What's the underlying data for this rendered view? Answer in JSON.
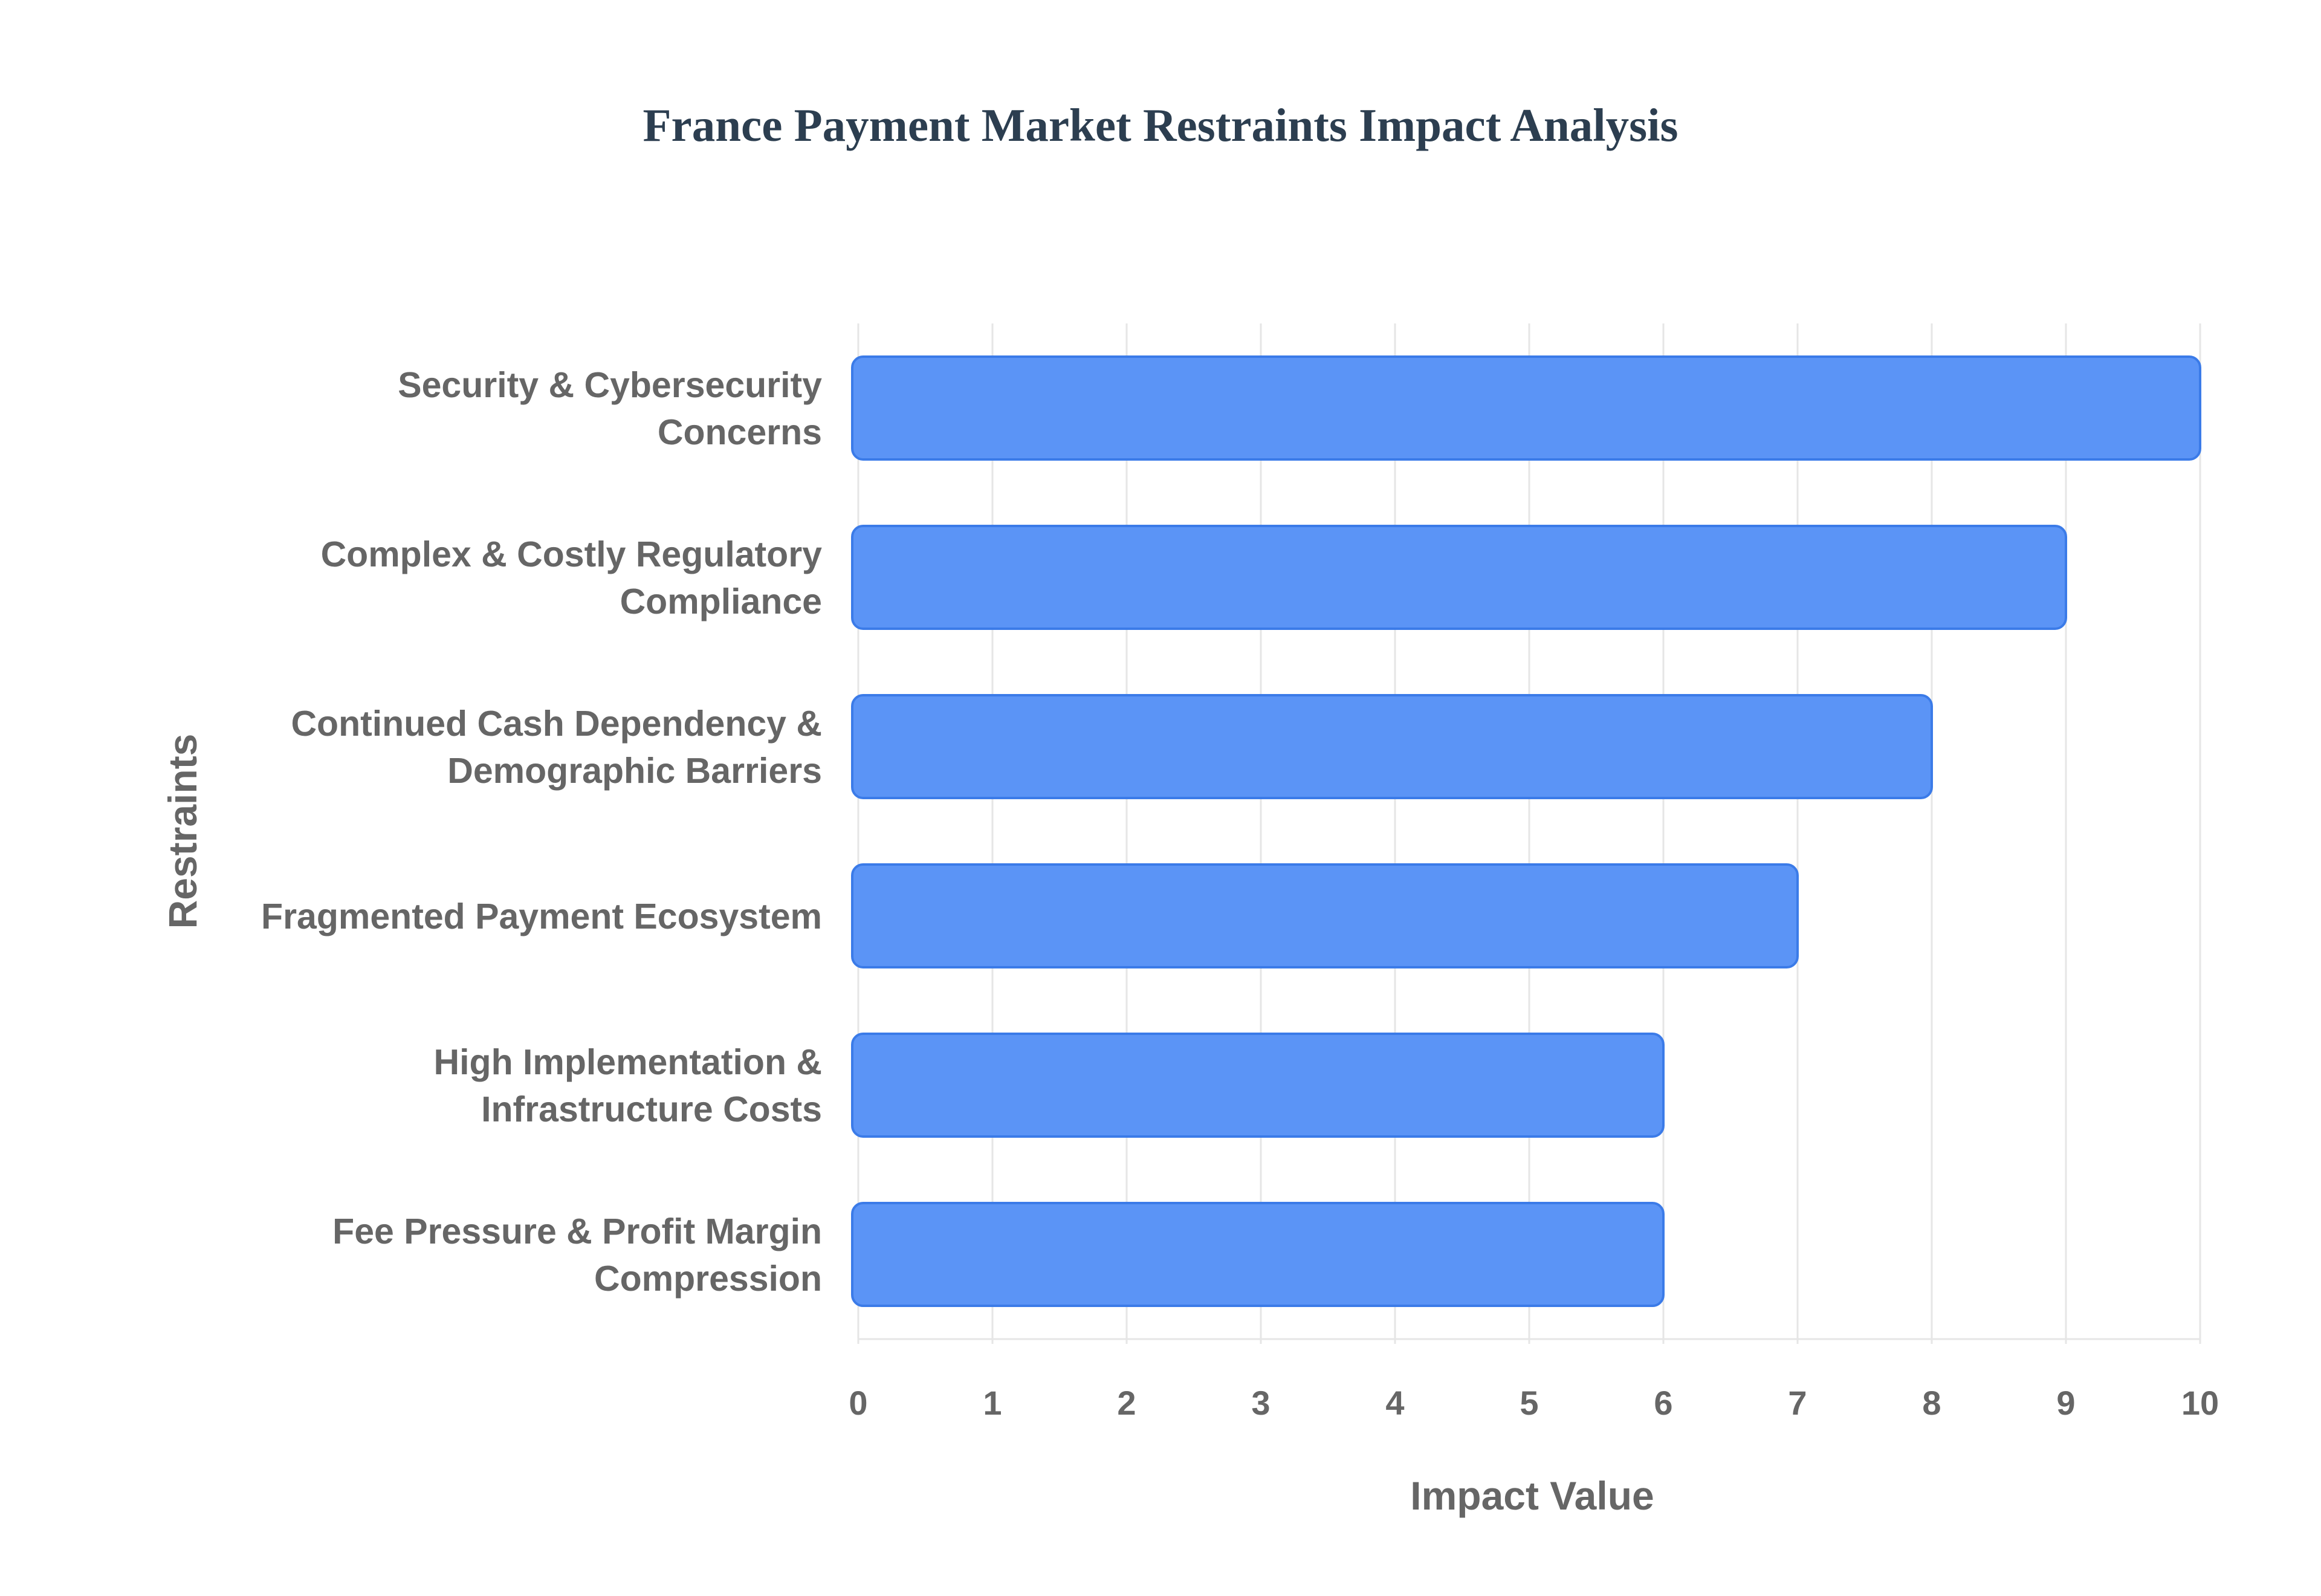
{
  "chart_data": {
    "type": "bar",
    "orientation": "horizontal",
    "title": "France Payment Market Restraints Impact Analysis",
    "xlabel": "Impact Value",
    "ylabel": "Restraints",
    "categories": [
      [
        "Security & Cybersecurity",
        "Concerns"
      ],
      [
        "Complex & Costly Regulatory",
        "Compliance"
      ],
      [
        "Continued Cash Dependency &",
        "Demographic Barriers"
      ],
      [
        "Fragmented Payment Ecosystem"
      ],
      [
        "High Implementation &",
        "Infrastructure Costs"
      ],
      [
        "Fee Pressure & Profit Margin",
        "Compression"
      ]
    ],
    "values": [
      10,
      9,
      8,
      7,
      6,
      6
    ],
    "xlim": [
      0,
      10
    ],
    "xticks": [
      "0",
      "1",
      "2",
      "3",
      "4",
      "5",
      "6",
      "7",
      "8",
      "9",
      "10"
    ],
    "grid": true,
    "legend": "none",
    "colors": {
      "bar_fill": "#5b94f6",
      "bar_stroke": "#3b7be8",
      "title": "#2c3e50",
      "text": "#666666",
      "grid": "#e6e6e6"
    }
  }
}
